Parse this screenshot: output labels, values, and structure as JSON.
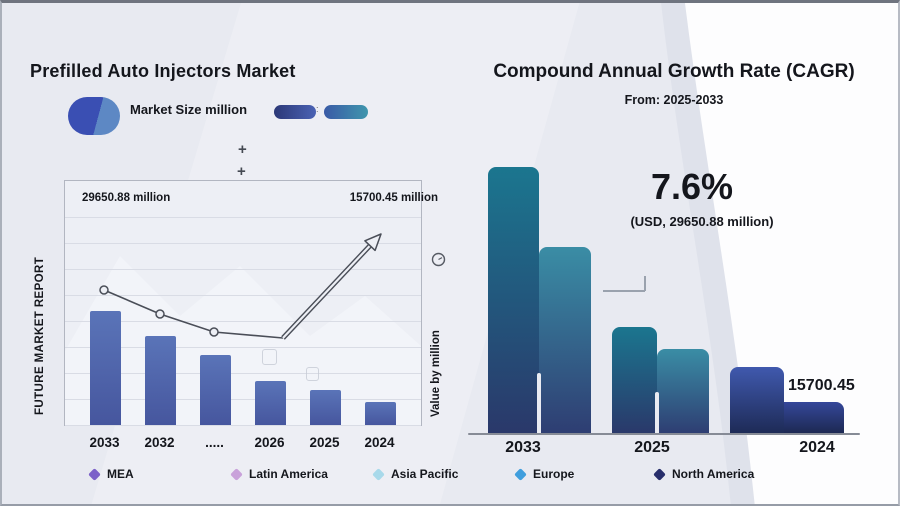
{
  "header_left": {
    "title": "Prefilled Auto Injectors Market",
    "series_label": "Market Size million",
    "pill_separator": ":"
  },
  "header_right": {
    "title": "Compound Annual Growth Rate (CAGR)",
    "subtitle": "From: 2025-2033"
  },
  "watermarks": {
    "left_vertical": "FUTURE MARKET REPORT",
    "axis_vertical": "Value by million",
    "plus_mark": "+"
  },
  "chart_data": [
    {
      "id": "market-size-timeline",
      "type": "bar",
      "title": "Prefilled Auto Injectors Market",
      "ylabel": "Market Size million",
      "grid": true,
      "categories": [
        "2033",
        "2032",
        ".....",
        "2026",
        "2025",
        "2024"
      ],
      "relative_bar_heights": [
        1.0,
        0.78,
        0.61,
        0.39,
        0.31,
        0.2
      ],
      "annotations": {
        "top_left": "29650.88 million",
        "top_right": "15700.45 million"
      },
      "line_overlay": {
        "description": "declining marker line from 2033 to 2026, then outlined arrow rising to top right",
        "marker_points": [
          [
            39,
            109
          ],
          [
            95,
            133
          ],
          [
            149,
            151
          ]
        ],
        "elbow": [
          218,
          157
        ],
        "arrow_tip": [
          316,
          53
        ]
      }
    },
    {
      "id": "cagr-chart",
      "type": "bar",
      "title": "Compound Annual Growth Rate (CAGR)",
      "subtitle": "From: 2025-2033",
      "ylabel": "Value by million",
      "cagr": "7.6%",
      "cagr_detail": "(USD, 29650.88 million)",
      "categories": [
        "2033",
        "2025",
        "2024"
      ],
      "series": [
        {
          "name": "primary",
          "relative_heights": [
            1.0,
            0.4,
            0.25
          ]
        },
        {
          "name": "secondary",
          "relative_heights": [
            0.7,
            0.32,
            0.12
          ]
        }
      ],
      "data_label": {
        "category": "2024",
        "text": "15700.45"
      }
    }
  ],
  "legend": {
    "items": [
      {
        "label": "MEA",
        "color": "#7b61c9"
      },
      {
        "label": "Latin America",
        "color": "#c9a2da"
      },
      {
        "label": "Asia Pacific",
        "color": "#a8d9ea"
      },
      {
        "label": "Europe",
        "color": "#3f9edd"
      },
      {
        "label": "North America",
        "color": "#272e6b"
      }
    ]
  },
  "colors": {
    "background": "#e8eaf1",
    "panel": "#edeff5",
    "left_bar_top": "#5a74b8",
    "left_bar_bottom": "#46569e",
    "right_bar_teal_top": "#1b768f",
    "right_bar_navy_bottom": "#1d2a55",
    "ink": "#14161c"
  }
}
